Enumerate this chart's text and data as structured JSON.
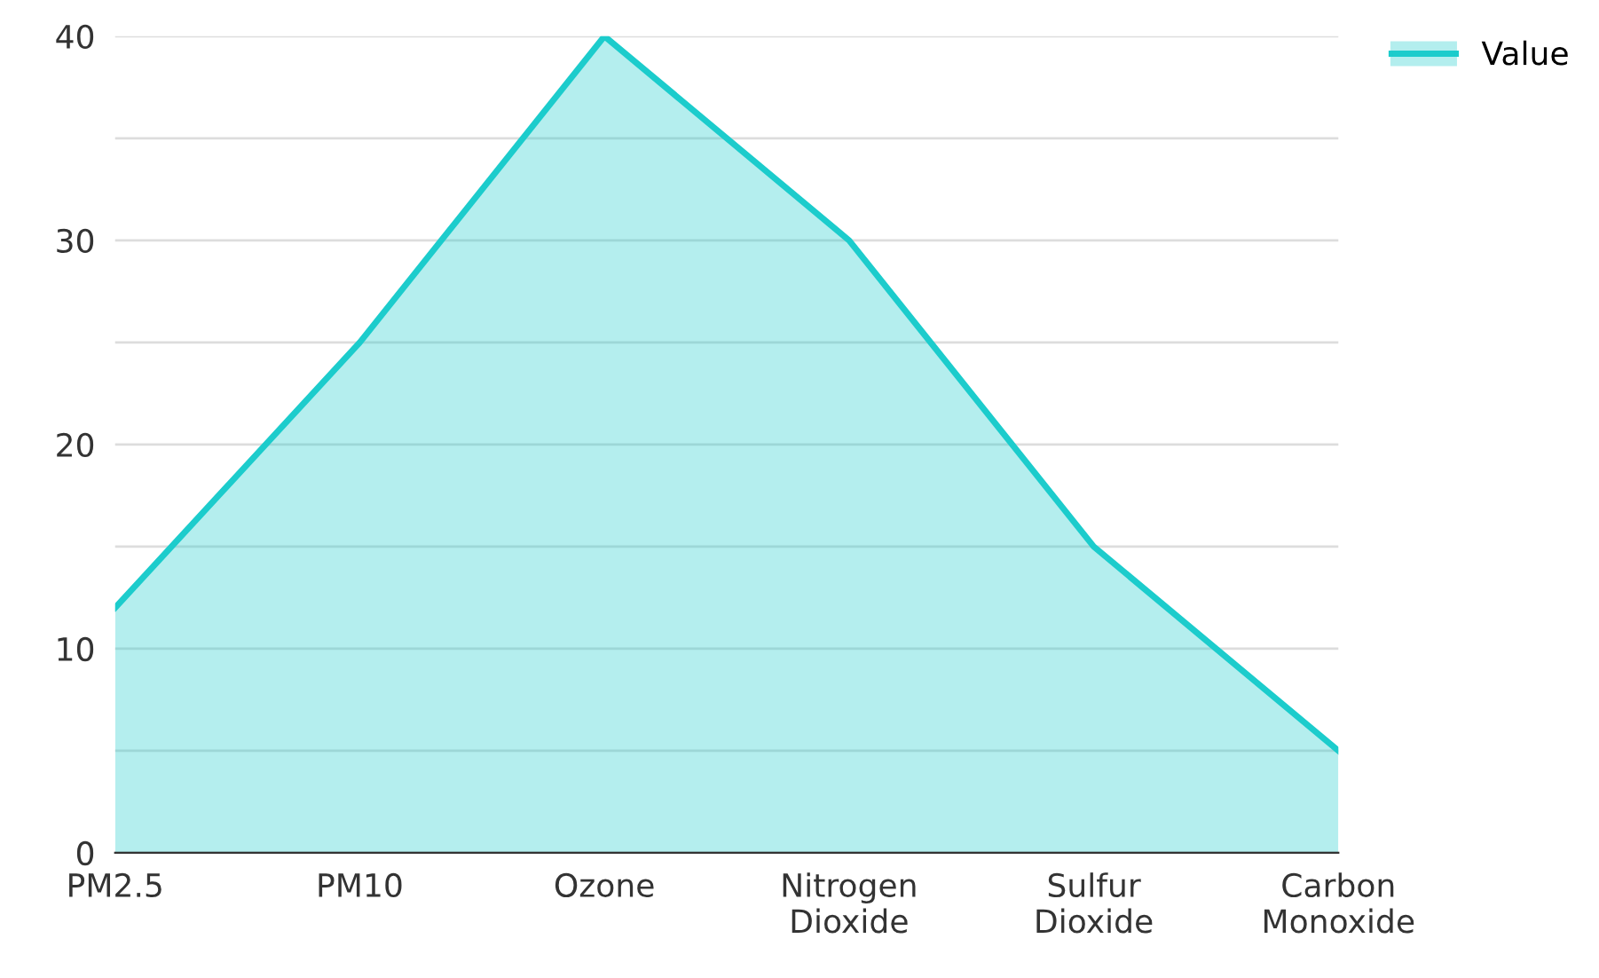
{
  "chart_data": {
    "type": "area",
    "categories": [
      "PM2.5",
      "PM10",
      "Ozone",
      "Nitrogen Dioxide",
      "Sulfur Dioxide",
      "Carbon Monoxide"
    ],
    "series": [
      {
        "name": "Value",
        "color": "#1ccccc",
        "values": [
          12,
          25,
          40,
          30,
          15,
          5
        ]
      }
    ],
    "ylim": [
      0,
      40
    ],
    "yticks": [
      0,
      {
        "value": 5,
        "label": null
      },
      10,
      {
        "value": 15,
        "label": null
      },
      20,
      {
        "value": 25,
        "label": null
      },
      30,
      {
        "value": 35,
        "label": null
      },
      40
    ],
    "grid": "y",
    "legend": "top right"
  }
}
